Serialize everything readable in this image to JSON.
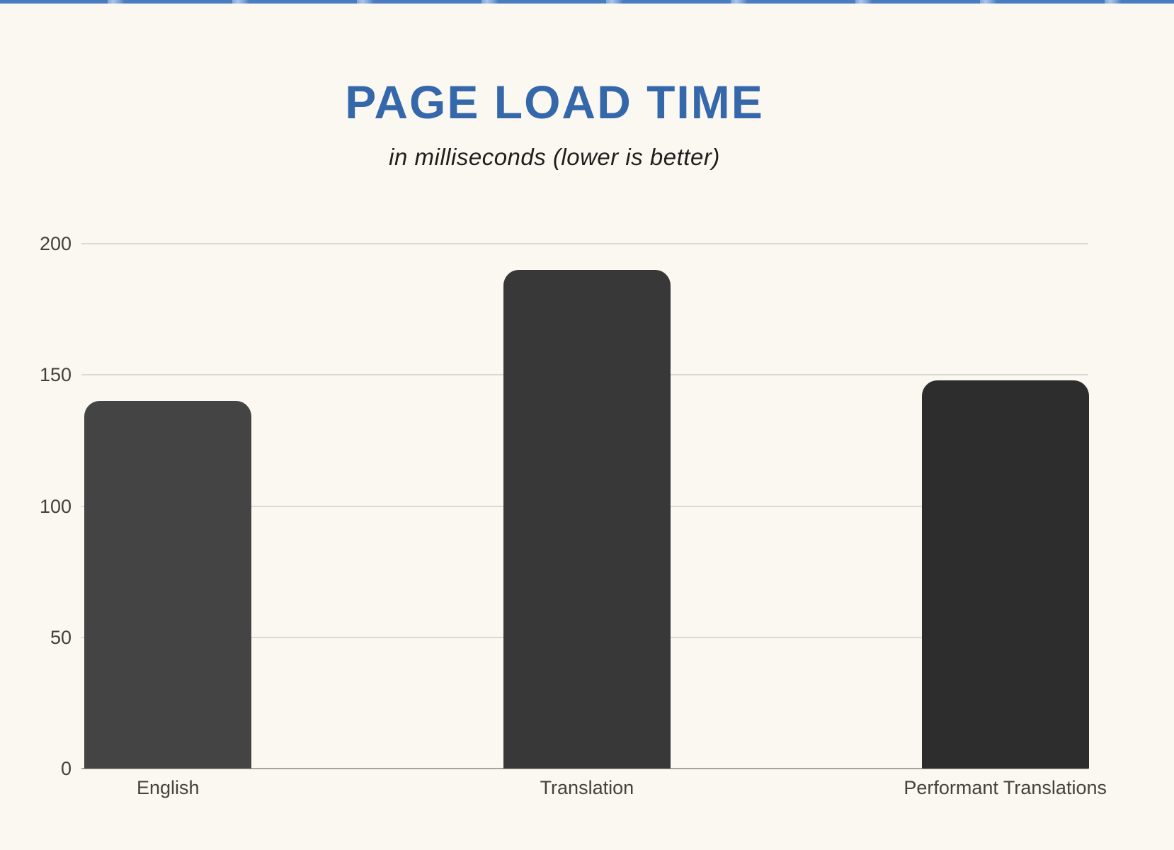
{
  "page": {
    "background_color": "#fbf8f1",
    "top_strip_color": "#4a7cc2"
  },
  "header": {
    "title": "PAGE LOAD TIME",
    "subtitle": "in milliseconds (lower is better)",
    "title_color": "#3568ab",
    "subtitle_color": "#1e1e1c"
  },
  "chart_data": {
    "type": "bar",
    "title": "PAGE LOAD TIME",
    "subtitle": "in milliseconds (lower is better)",
    "categories": [
      "English",
      "Translation",
      "Performant Translations"
    ],
    "values": [
      140,
      190,
      148
    ],
    "bar_colors": [
      "#454444",
      "#393839",
      "#2e2d2d"
    ],
    "xlabel": "",
    "ylabel": "",
    "ylim": [
      0,
      200
    ],
    "yticks": [
      0,
      50,
      100,
      150,
      200
    ],
    "grid": true,
    "legend": false,
    "gridline_color": "#dbd9d4",
    "axis_line_color": "#a5a3a0",
    "tick_label_color": "#434139"
  }
}
